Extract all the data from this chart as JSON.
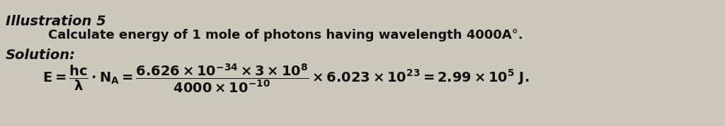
{
  "title": "Illustration 5",
  "line1": "Calculate energy of 1 mole of photons having wavelength 4000A°.",
  "line2": "Solution:",
  "bg_color": "#cdc8bc",
  "text_color": "#111111",
  "figsize": [
    10.24,
    1.79
  ],
  "dpi": 100,
  "title_fontsize": 14,
  "body_fontsize": 13,
  "math_fontsize": 14
}
